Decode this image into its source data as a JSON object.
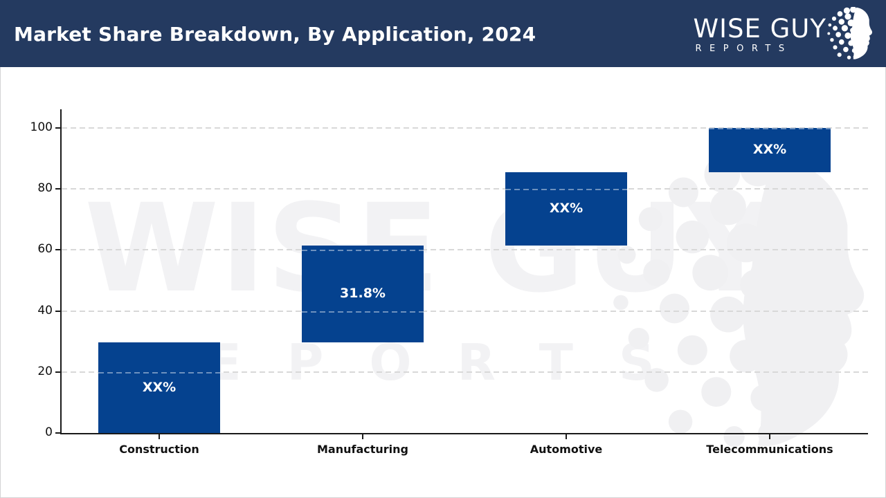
{
  "header": {
    "title": "Market Share Breakdown, By Application, 2024",
    "logo": {
      "line1": "WISE GUY",
      "line2": "REPORTS"
    }
  },
  "watermark": {
    "line1": "WISE GUY",
    "line2": "REPORTS"
  },
  "colors": {
    "header_background": "#243a60",
    "bar_blue": "#05428f",
    "grid_gray": "#d8d8d8",
    "watermark_gray": "#f2f2f4",
    "axis_black": "#1a1a1a"
  },
  "chart_data": {
    "type": "bar",
    "subtype": "waterfall",
    "title": "Market Share Breakdown, By Application, 2024",
    "categories": [
      "Construction",
      "Manufacturing",
      "Automotive",
      "Telecommunications"
    ],
    "values": [
      29.7,
      31.8,
      23.9,
      14.6
    ],
    "cumulative_start": [
      0,
      29.7,
      61.5,
      85.4
    ],
    "cumulative_end": [
      29.7,
      61.5,
      85.4,
      100
    ],
    "bar_labels": [
      "XX%",
      "31.8%",
      "XX%",
      "XX%"
    ],
    "xlabel": "",
    "ylabel": "",
    "yticks": [
      0,
      20,
      40,
      60,
      80,
      100
    ],
    "ylim": [
      0,
      106
    ],
    "grid": "dashed horizontal",
    "legend": "none",
    "bar_color": "#05428f"
  }
}
